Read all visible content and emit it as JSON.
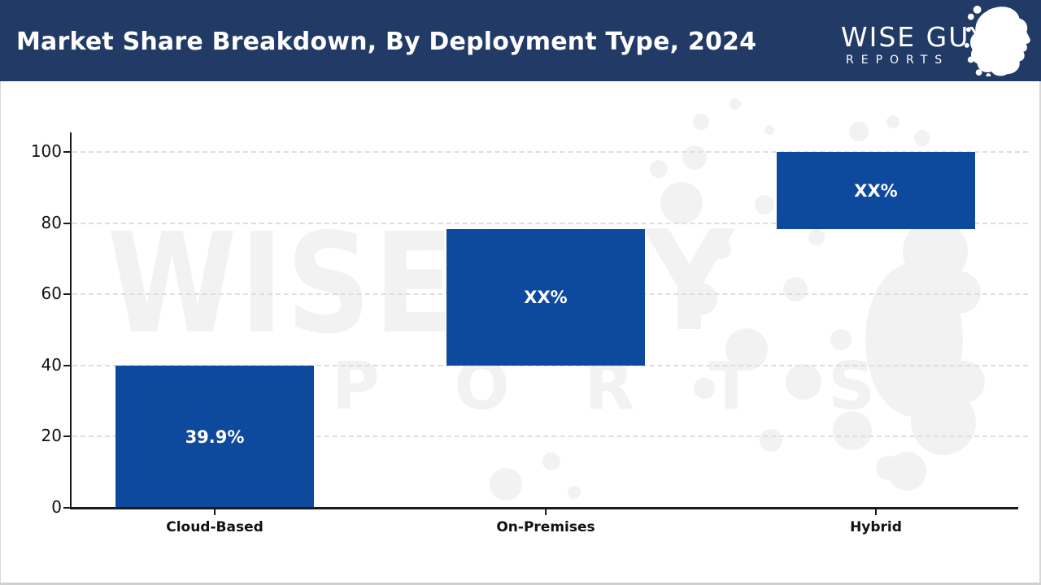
{
  "header": {
    "title": "Market Share Breakdown, By Deployment Type, 2024",
    "logo": {
      "brand_top": "WISE GUY",
      "brand_bottom": "REPORTS"
    }
  },
  "watermark": {
    "top_word": "WISE",
    "mid_letter": "Y",
    "bottom_word": "P O R T S"
  },
  "chart_data": {
    "type": "bar",
    "variant": "waterfall",
    "title": "Market Share Breakdown, By Deployment Type, 2024",
    "categories": [
      "Cloud-Based",
      "On-Premises",
      "Hybrid"
    ],
    "segments": [
      {
        "category": "Cloud-Based",
        "start": 0,
        "end": 39.9,
        "value_label": "39.9%"
      },
      {
        "category": "On-Premises",
        "start": 39.9,
        "end": 78.2,
        "value_label": "XX%"
      },
      {
        "category": "Hybrid",
        "start": 78.2,
        "end": 100,
        "value_label": "XX%"
      }
    ],
    "y_ticks": [
      0,
      20,
      40,
      60,
      80,
      100
    ],
    "ylim": [
      0,
      105.5
    ],
    "xlabel": "",
    "ylabel": "",
    "grid": "horizontal-dashed",
    "legend": "none",
    "bar_color": "#0d499c",
    "bar_label_color": "#ffffff"
  },
  "colors": {
    "header_bg": "#213a66",
    "title_text": "#ffffff",
    "bar": "#0d499c",
    "axis_line": "#1a1a1a",
    "tick_text": "#111111",
    "gridline": "#dedede",
    "watermark": "#f2f2f2",
    "page_bg": "#ffffff",
    "bottom_strip": "#cfcfcf"
  }
}
